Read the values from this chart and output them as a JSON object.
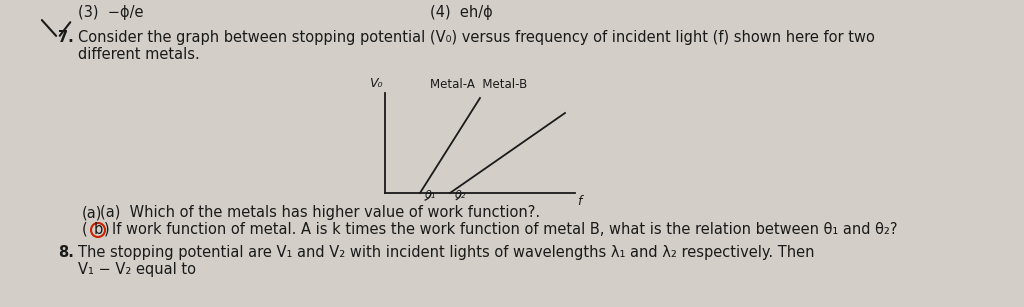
{
  "background_color": "#d3cfc8",
  "text_color": "#1a1a1a",
  "option3": "(3)  −ϕ/e",
  "option4": "(4)  eh/ϕ",
  "q7_label": "7.",
  "q7_text": "Consider the graph between stopping potential (V₀) versus frequency of incident light (f) shown here for two\ndifferent metals.",
  "qa_text": "(a)  Which of the metals has higher value of work function?.",
  "qb_text": "If work function of metal. A is k times the work function of metal B, what is the relation between θ₁ and θ₂?",
  "q8_text": "The stopping potential are V₁ and V₂ with incident lights of wavelengths λ₁ and λ₂ respectively. Then\nV₁ − V₂ equal to",
  "graph_label_y": "V₀",
  "graph_label_x": "f",
  "graph_metal_a": "Metal-A",
  "graph_metal_b": "Metal-B",
  "graph_theta1": "θ₁",
  "graph_theta2": "θ₂",
  "font_size_main": 10.5,
  "line_color": "#1a1a1a",
  "circle_color": "#cc2200"
}
